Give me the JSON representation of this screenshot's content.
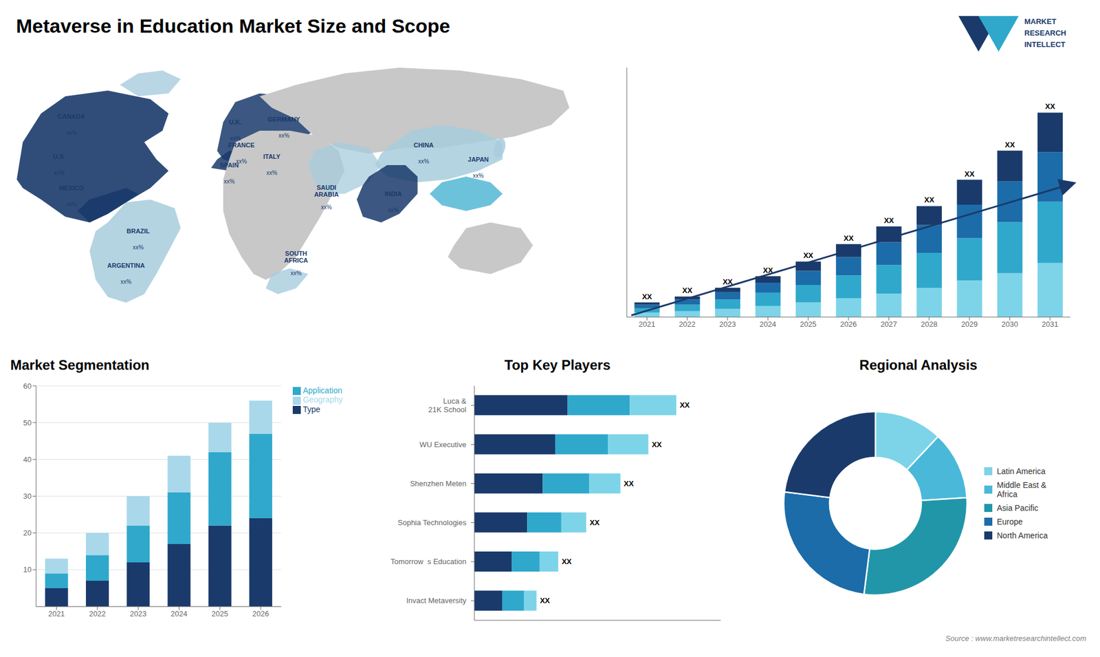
{
  "title": "Metaverse in Education Market Size and Scope",
  "annotations": [
    "Source : www.marketresearchintellect.com",
    "MARKET",
    "RESEARCH",
    "INTELLECT"
  ],
  "chart_data": [
    {
      "type": "map",
      "color": "#1a3a6b",
      "annotations": [
        "CANADA",
        "xx%",
        "U.S.",
        "xx%",
        "MEXICO",
        "xx%",
        "BRAZIL",
        "xx%",
        "ARGENTINA",
        "xx%",
        "U.K.",
        "xx%",
        "FRANCE",
        "xx%",
        "SPAIN",
        "xx%",
        "GERMANY",
        "xx%",
        "ITALY",
        "xx%",
        "SAUDI\nARABIA",
        "xx%",
        "SOUTH\nAFRICA",
        "xx%",
        "CHINA",
        "xx%",
        "INDIA",
        "xx%",
        "JAPAN",
        "xx%"
      ]
    },
    {
      "type": "bar",
      "stacked": true,
      "categories": [
        "2021",
        "2022",
        "2023",
        "2024",
        "2025",
        "2026",
        "2027",
        "2028",
        "2029",
        "2030",
        "2031"
      ],
      "series": [
        {
          "color": "#7dd4e8",
          "values": [
            1.5,
            2.0,
            2.8,
            3.8,
            5.0,
            6.5,
            8.0,
            10.0,
            12.5,
            15.0,
            18.5
          ]
        },
        {
          "color": "#2fa8cc",
          "values": [
            1.5,
            2.2,
            3.2,
            4.5,
            6.0,
            7.8,
            9.8,
            12.0,
            14.5,
            17.5,
            21.0
          ]
        },
        {
          "color": "#1b6ca8",
          "values": [
            1.2,
            1.8,
            2.5,
            3.5,
            4.8,
            6.2,
            7.8,
            9.5,
            11.5,
            14.0,
            17.0
          ]
        },
        {
          "color": "#1a3a6b",
          "values": [
            0.8,
            1.0,
            1.5,
            2.2,
            3.2,
            4.5,
            5.4,
            6.5,
            8.5,
            10.5,
            13.5
          ]
        }
      ],
      "annotations": [
        "XX",
        "XX",
        "XX",
        "XX",
        "XX",
        "XX",
        "XX",
        "XX",
        "XX",
        "XX",
        "XX"
      ],
      "ylim": [
        0,
        85.4
      ],
      "tick_labels": "x",
      "grid": false
    },
    {
      "type": "bar",
      "stacked": true,
      "title": "Market Segmentation",
      "categories": [
        "2021",
        "2022",
        "2023",
        "2024",
        "2025",
        "2026"
      ],
      "series": [
        {
          "name": "Type",
          "color": "#1a3a6b",
          "values": [
            5,
            7,
            12,
            17,
            22,
            24
          ]
        },
        {
          "name": "Application",
          "color": "#2fa8cc",
          "values": [
            4,
            7,
            10,
            14,
            20,
            23
          ]
        },
        {
          "name": "Geography",
          "color": "#a8d8ea",
          "values": [
            4,
            6,
            8,
            10,
            8,
            9
          ]
        }
      ],
      "ylim": [
        0,
        60
      ],
      "yticks": [
        10,
        20,
        30,
        40,
        50,
        60
      ],
      "grid": true,
      "legend": "right"
    },
    {
      "type": "bar",
      "stacked": true,
      "orientation": "horizontal",
      "title": "Top Key Players",
      "categories": [
        "Luca &\n21K School",
        "WU Executive",
        "Shenzhen Meten",
        "Sophia Technologies",
        "Tomorrow  s Education",
        "Invact Metaversity"
      ],
      "series": [
        {
          "color": "#1a3a6b",
          "values": [
            30,
            26,
            22,
            17,
            12,
            9
          ]
        },
        {
          "color": "#2fa8cc",
          "values": [
            20,
            17,
            15,
            11,
            9,
            7
          ]
        },
        {
          "color": "#7dd4e8",
          "values": [
            15,
            13,
            10,
            8,
            6,
            4
          ]
        }
      ],
      "annotations": [
        "XX",
        "XX",
        "XX",
        "XX",
        "XX",
        "XX"
      ],
      "xlim": [
        0,
        79.3
      ],
      "tick_labels": "y",
      "grid": false
    },
    {
      "type": "donut",
      "title": "Regional Analysis",
      "categories": [
        "Latin America",
        "Middle East &\nAfrica",
        "Asia Pacific",
        "Europe",
        "North America"
      ],
      "values": [
        12,
        12,
        28,
        25,
        23
      ],
      "colors": [
        "#7dd4e8",
        "#4ab8d8",
        "#2196a8",
        "#1b6ca8",
        "#1a3a6b"
      ],
      "legend": "right"
    }
  ]
}
